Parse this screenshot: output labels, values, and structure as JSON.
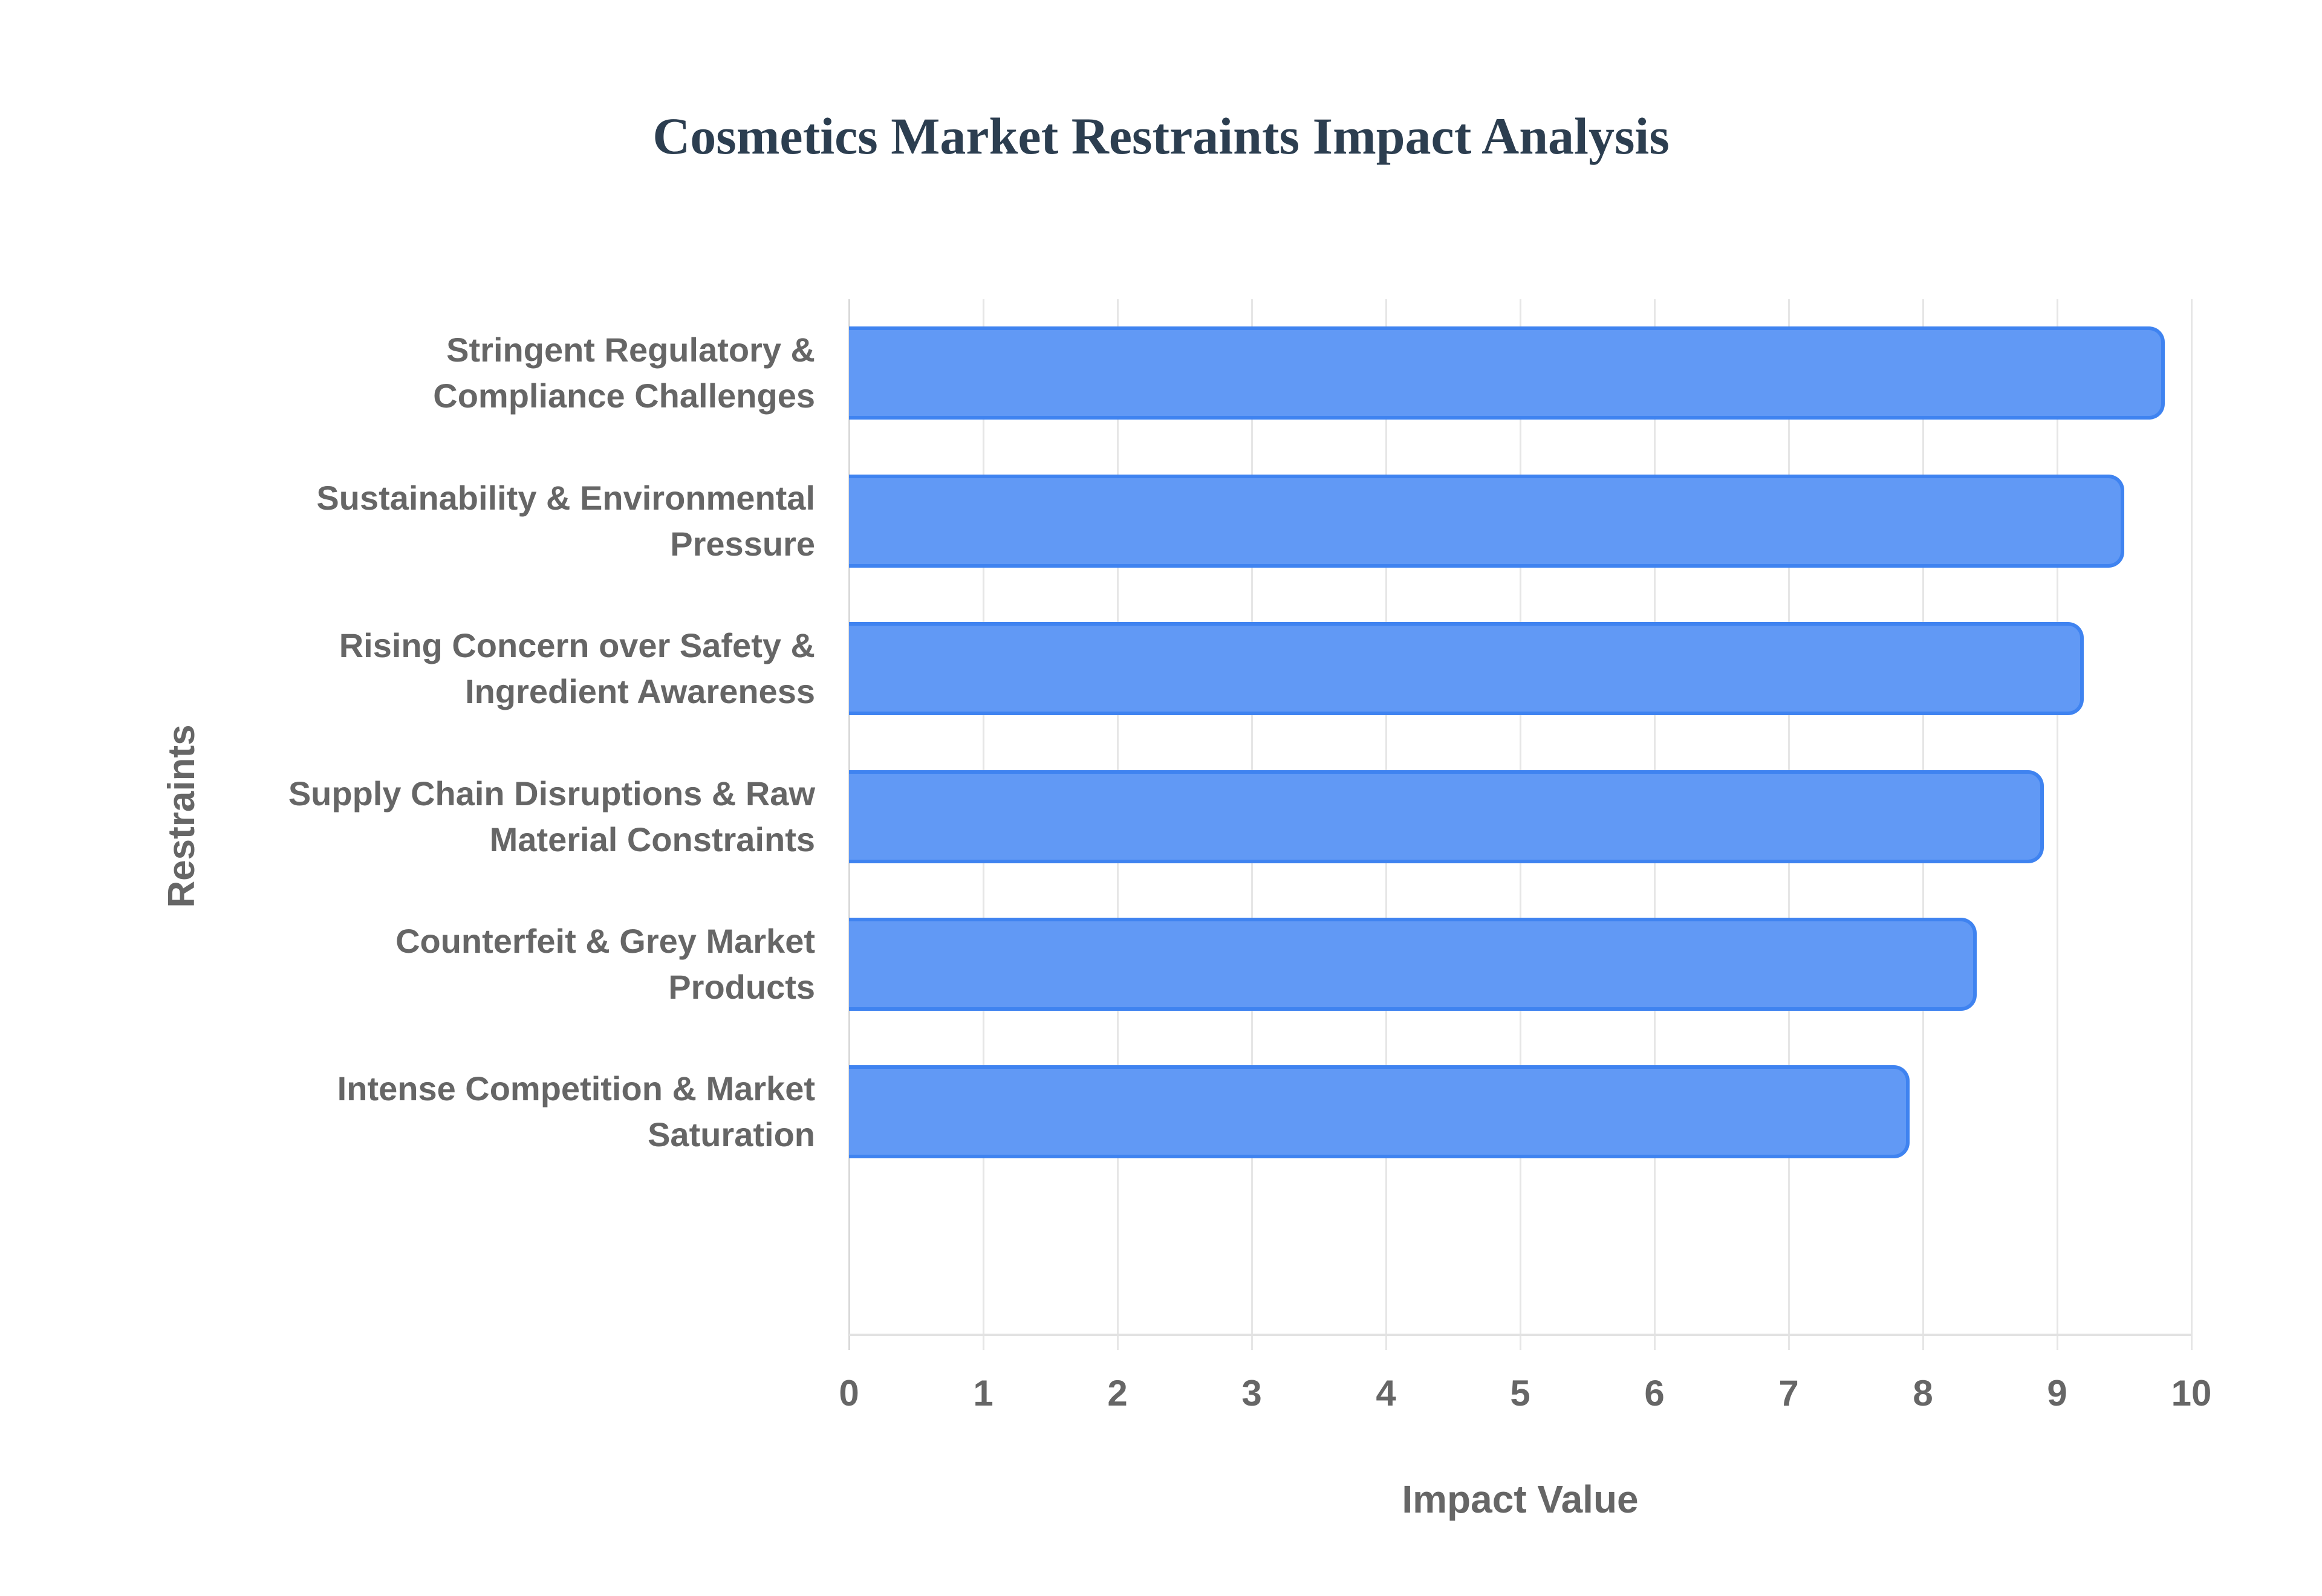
{
  "chart_data": {
    "type": "bar",
    "orientation": "horizontal",
    "title": "Cosmetics Market Restraints Impact Analysis",
    "xlabel": "Impact Value",
    "ylabel": "Restraints",
    "xlim": [
      0,
      10
    ],
    "x_ticks": [
      "0",
      "1",
      "2",
      "3",
      "4",
      "5",
      "6",
      "7",
      "8",
      "9",
      "10"
    ],
    "grid": true,
    "legend": null,
    "categories": [
      "Stringent Regulatory & Compliance Challenges",
      "Sustainability & Environmental Pressure",
      "Rising Concern over Safety & Ingredient Awareness",
      "Supply Chain Disruptions & Raw Material Constraints",
      "Counterfeit & Grey Market Products",
      "Intense Competition & Market Saturation"
    ],
    "category_label_lines": [
      [
        "Stringent Regulatory &",
        "Compliance Challenges"
      ],
      [
        "Sustainability & Environmental",
        "Pressure"
      ],
      [
        "Rising Concern over Safety &",
        "Ingredient Awareness"
      ],
      [
        "Supply Chain Disruptions & Raw",
        "Material Constraints"
      ],
      [
        "Counterfeit & Grey Market",
        "Products"
      ],
      [
        "Intense Competition & Market",
        "Saturation"
      ]
    ],
    "values": [
      9.8,
      9.5,
      9.2,
      8.9,
      8.4,
      7.9
    ],
    "colors": {
      "bar_fill": "#6199f5",
      "bar_border": "#3f83f0",
      "title": "#2c3e50",
      "axis_text": "#666666",
      "grid": "#e6e6e6"
    }
  }
}
